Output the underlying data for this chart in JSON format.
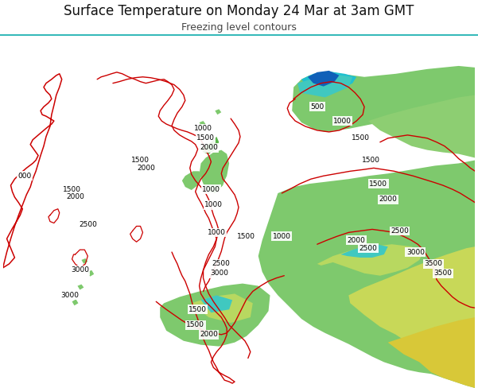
{
  "title": "Surface Temperature on Monday 24 Mar at 3am GMT",
  "subtitle": "Freezing level contours",
  "title_fontsize": 12,
  "subtitle_fontsize": 9,
  "fig_width": 6.01,
  "fig_height": 4.88,
  "dpi": 100,
  "header_bg": "#ffffff",
  "map_bg_ocean": "#cdd5e8",
  "border_color": "#2ab5b5",
  "contour_color": "#cc0000",
  "title_color": "#111111",
  "subtitle_color": "#444444",
  "label_text_color": "#000000",
  "label_bg_color": "#ffffff",
  "land_green_light": "#7ec96d",
  "land_green_mid": "#5ab54a",
  "land_green_dark": "#3a9a3a",
  "land_yellow_green": "#b8d860",
  "land_yellow": "#d8d040",
  "land_cyan": "#40c8c0",
  "land_blue_cyan": "#40a8e0",
  "land_cyan2": "#20c0d0"
}
